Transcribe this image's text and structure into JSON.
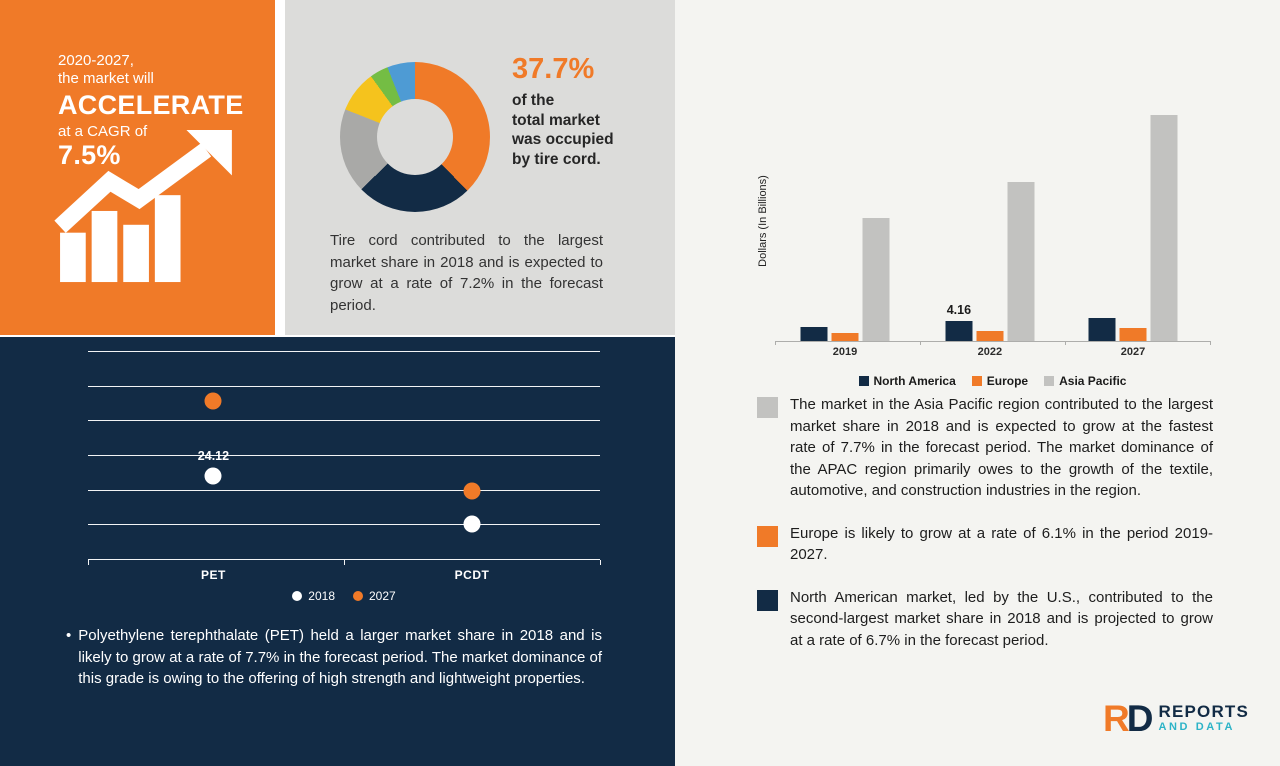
{
  "colors": {
    "orange": "#F07A28",
    "navy": "#122B45",
    "panel_gray": "#DCDCDA",
    "right_bg": "#F4F4F1",
    "bar_gray": "#C2C2C0",
    "teal": "#2CB3C7"
  },
  "accelerate_card": {
    "period": "2020-2027,",
    "line2": "the market will",
    "line3": "ACCELERATE",
    "line4": "at a CAGR of",
    "cagr": "7.5%"
  },
  "tire_cord_card": {
    "headline_value": "37.7%",
    "headline_lines": [
      "of the",
      "total market",
      "was occupied",
      "by tire cord."
    ],
    "body": "Tire cord contributed to the largest market share in 2018 and is expected to grow at a rate of 7.2% in the forecast period."
  },
  "grade_section": {
    "bullet": "Polyethylene terephthalate (PET) held a larger market share in 2018 and is likely to grow at a rate of 7.7% in the forecast period. The market dominance of this grade is owing to the offering of high strength and lightweight properties."
  },
  "region_section": {
    "bullets": [
      {
        "color": "#C2C2C0",
        "text": "The market in the Asia Pacific region contributed to the largest market share in 2018 and is expected to grow at the fastest rate of 7.7% in the forecast period. The market dominance of the APAC region primarily owes to the growth of the textile, automotive, and construction industries in the region."
      },
      {
        "color": "#F07A28",
        "text": "Europe is likely to grow at a rate of 6.1% in the period 2019-2027."
      },
      {
        "color": "#122B45",
        "text": "North American market, led by the U.S., contributed to the second-largest market share in 2018 and is projected to grow at a rate of 6.7% in the forecast period."
      }
    ]
  },
  "logo": {
    "mark_r": "R",
    "mark_d": "D",
    "line1": "REPORTS",
    "line2": "AND DATA"
  },
  "chart_data": [
    {
      "type": "pie",
      "name": "tire-cord-share-donut",
      "donut": true,
      "segments": [
        {
          "label": "Tire cord",
          "value": 37.7,
          "color": "#F07A28"
        },
        {
          "label": "",
          "value": 25.0,
          "color": "#122B45"
        },
        {
          "label": "",
          "value": 18.3,
          "color": "#A9A9A7"
        },
        {
          "label": "",
          "value": 9.0,
          "color": "#F5C31D"
        },
        {
          "label": "",
          "value": 4.0,
          "color": "#74BD44"
        },
        {
          "label": "",
          "value": 6.0,
          "color": "#4E9BD4"
        }
      ],
      "highlight_value_text": "37.7%"
    },
    {
      "type": "scatter",
      "name": "grade-dot-plot",
      "categories": [
        "PET",
        "PCDT"
      ],
      "category_positions_pct": [
        24.5,
        75
      ],
      "series": [
        {
          "name": "2018",
          "color": "#FFFFFF",
          "values": [
            24.12,
            10.5
          ]
        },
        {
          "name": "2027",
          "color": "#F07A28",
          "values": [
            45.8,
            20.0
          ]
        }
      ],
      "ylim": [
        0,
        60
      ],
      "grid_step": 10,
      "point_label": {
        "series": "2018",
        "category": "PET",
        "text": "24.12"
      },
      "legend_position": "bottom",
      "grid": true
    },
    {
      "type": "bar",
      "name": "regional-market-bar-chart",
      "categories": [
        "2019",
        "2022",
        "2027"
      ],
      "group_centers_pct": [
        16.1,
        49.4,
        82.3
      ],
      "series": [
        {
          "name": "North America",
          "color": "#122B45",
          "values": [
            2.9,
            4.16,
            4.8
          ],
          "value_labels": [
            "",
            "4.16",
            ""
          ]
        },
        {
          "name": "Europe",
          "color": "#F07A28",
          "values": [
            1.7,
            2.1,
            2.7
          ],
          "value_labels": [
            "",
            "",
            ""
          ]
        },
        {
          "name": "Asia Pacific",
          "color": "#C2C2C0",
          "values": [
            25.6,
            32.9,
            46.8
          ],
          "value_labels": [
            "",
            "",
            ""
          ]
        }
      ],
      "ylabel": "Dollars (In Billions)",
      "ylim": [
        0,
        50
      ],
      "legend_position": "bottom",
      "grid": false
    }
  ]
}
